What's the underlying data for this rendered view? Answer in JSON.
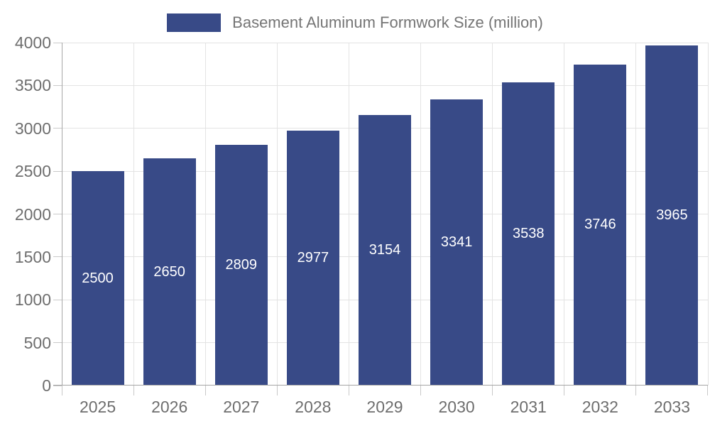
{
  "chart_data": {
    "type": "bar",
    "legend": "Basement Aluminum Formwork Size (million)",
    "categories": [
      "2025",
      "2026",
      "2027",
      "2028",
      "2029",
      "2030",
      "2031",
      "2032",
      "2033"
    ],
    "values": [
      2500,
      2650,
      2809,
      2977,
      3154,
      3341,
      3538,
      3746,
      3965
    ],
    "xlabel": "",
    "ylabel": "",
    "ylim": [
      0,
      4000
    ],
    "ytick_step": 500,
    "grid": true,
    "legend_position": "top",
    "value_labels": "inside-center",
    "colors": {
      "bar": "#384a87",
      "grid": "#e3e3e3",
      "axis": "#a6a6a6",
      "tick": "#c9c9c9",
      "axis_text": "#6e6e6e",
      "legend_text": "#757575",
      "bar_value_text": "#ffffff",
      "background": "#ffffff"
    }
  }
}
